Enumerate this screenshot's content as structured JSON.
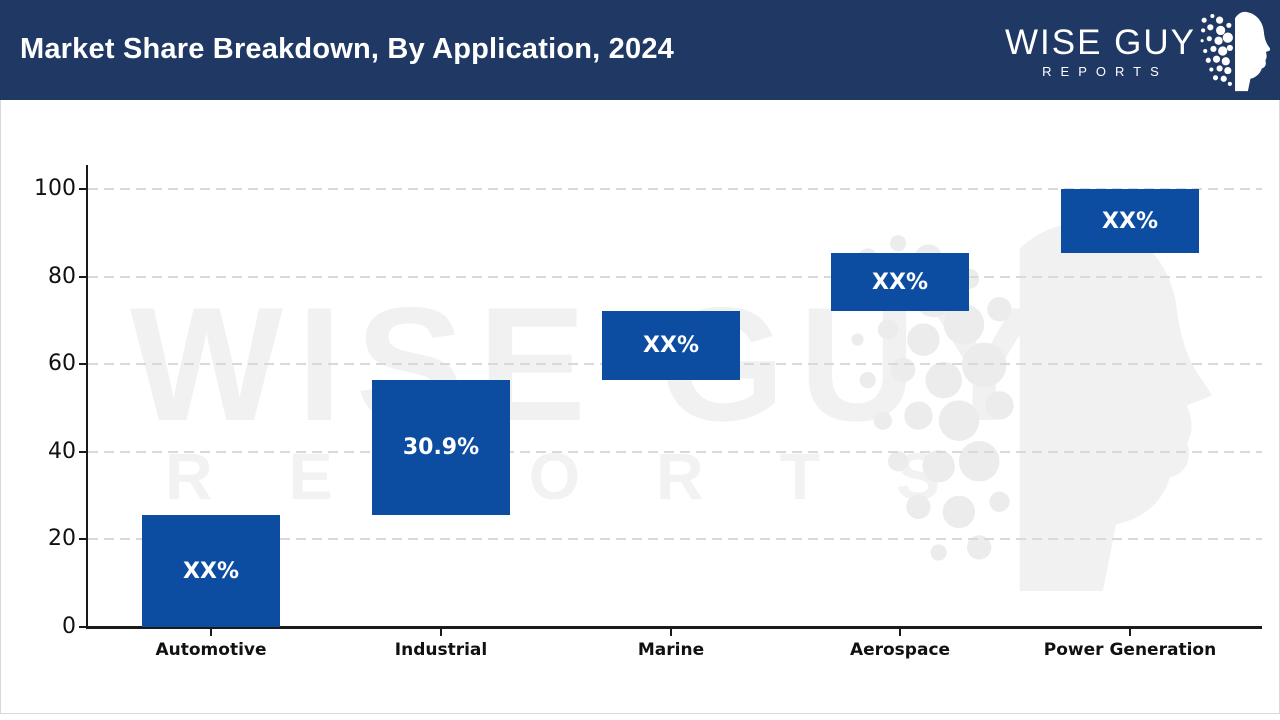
{
  "header": {
    "title": "Market Share Breakdown, By Application, 2024",
    "bg_color": "#1f3864",
    "logo": {
      "line1": "WISE GUY",
      "line2": "REPORTS"
    }
  },
  "watermark": {
    "line1": "WISE GUY",
    "line2": "REPORTS"
  },
  "chart_data": {
    "type": "bar",
    "subtype": "floating-waterfall",
    "title": "Market Share Breakdown, By Application, 2024",
    "categories": [
      "Automotive",
      "Industrial",
      "Marine",
      "Aerospace",
      "Power Generation"
    ],
    "segments": [
      {
        "category": "Automotive",
        "start": 0,
        "end": 25.5,
        "label": "XX%"
      },
      {
        "category": "Industrial",
        "start": 25.5,
        "end": 56.4,
        "label": "30.9%"
      },
      {
        "category": "Marine",
        "start": 56.4,
        "end": 72.2,
        "label": "XX%"
      },
      {
        "category": "Aerospace",
        "start": 72.2,
        "end": 85.3,
        "label": "XX%"
      },
      {
        "category": "Power Generation",
        "start": 85.3,
        "end": 100,
        "label": "XX%"
      }
    ],
    "y_ticks": [
      0,
      20,
      40,
      60,
      80,
      100
    ],
    "ylim": [
      0,
      105
    ],
    "xlabel": "",
    "ylabel": "",
    "grid": "horizontal-dashed",
    "legend": "none",
    "colors": {
      "bar": "#0d4da1",
      "bar_label": "#ffffff",
      "grid": "#d9d9d9",
      "axis": "#1a1a1a",
      "plot_bg": "#ffffff"
    }
  }
}
